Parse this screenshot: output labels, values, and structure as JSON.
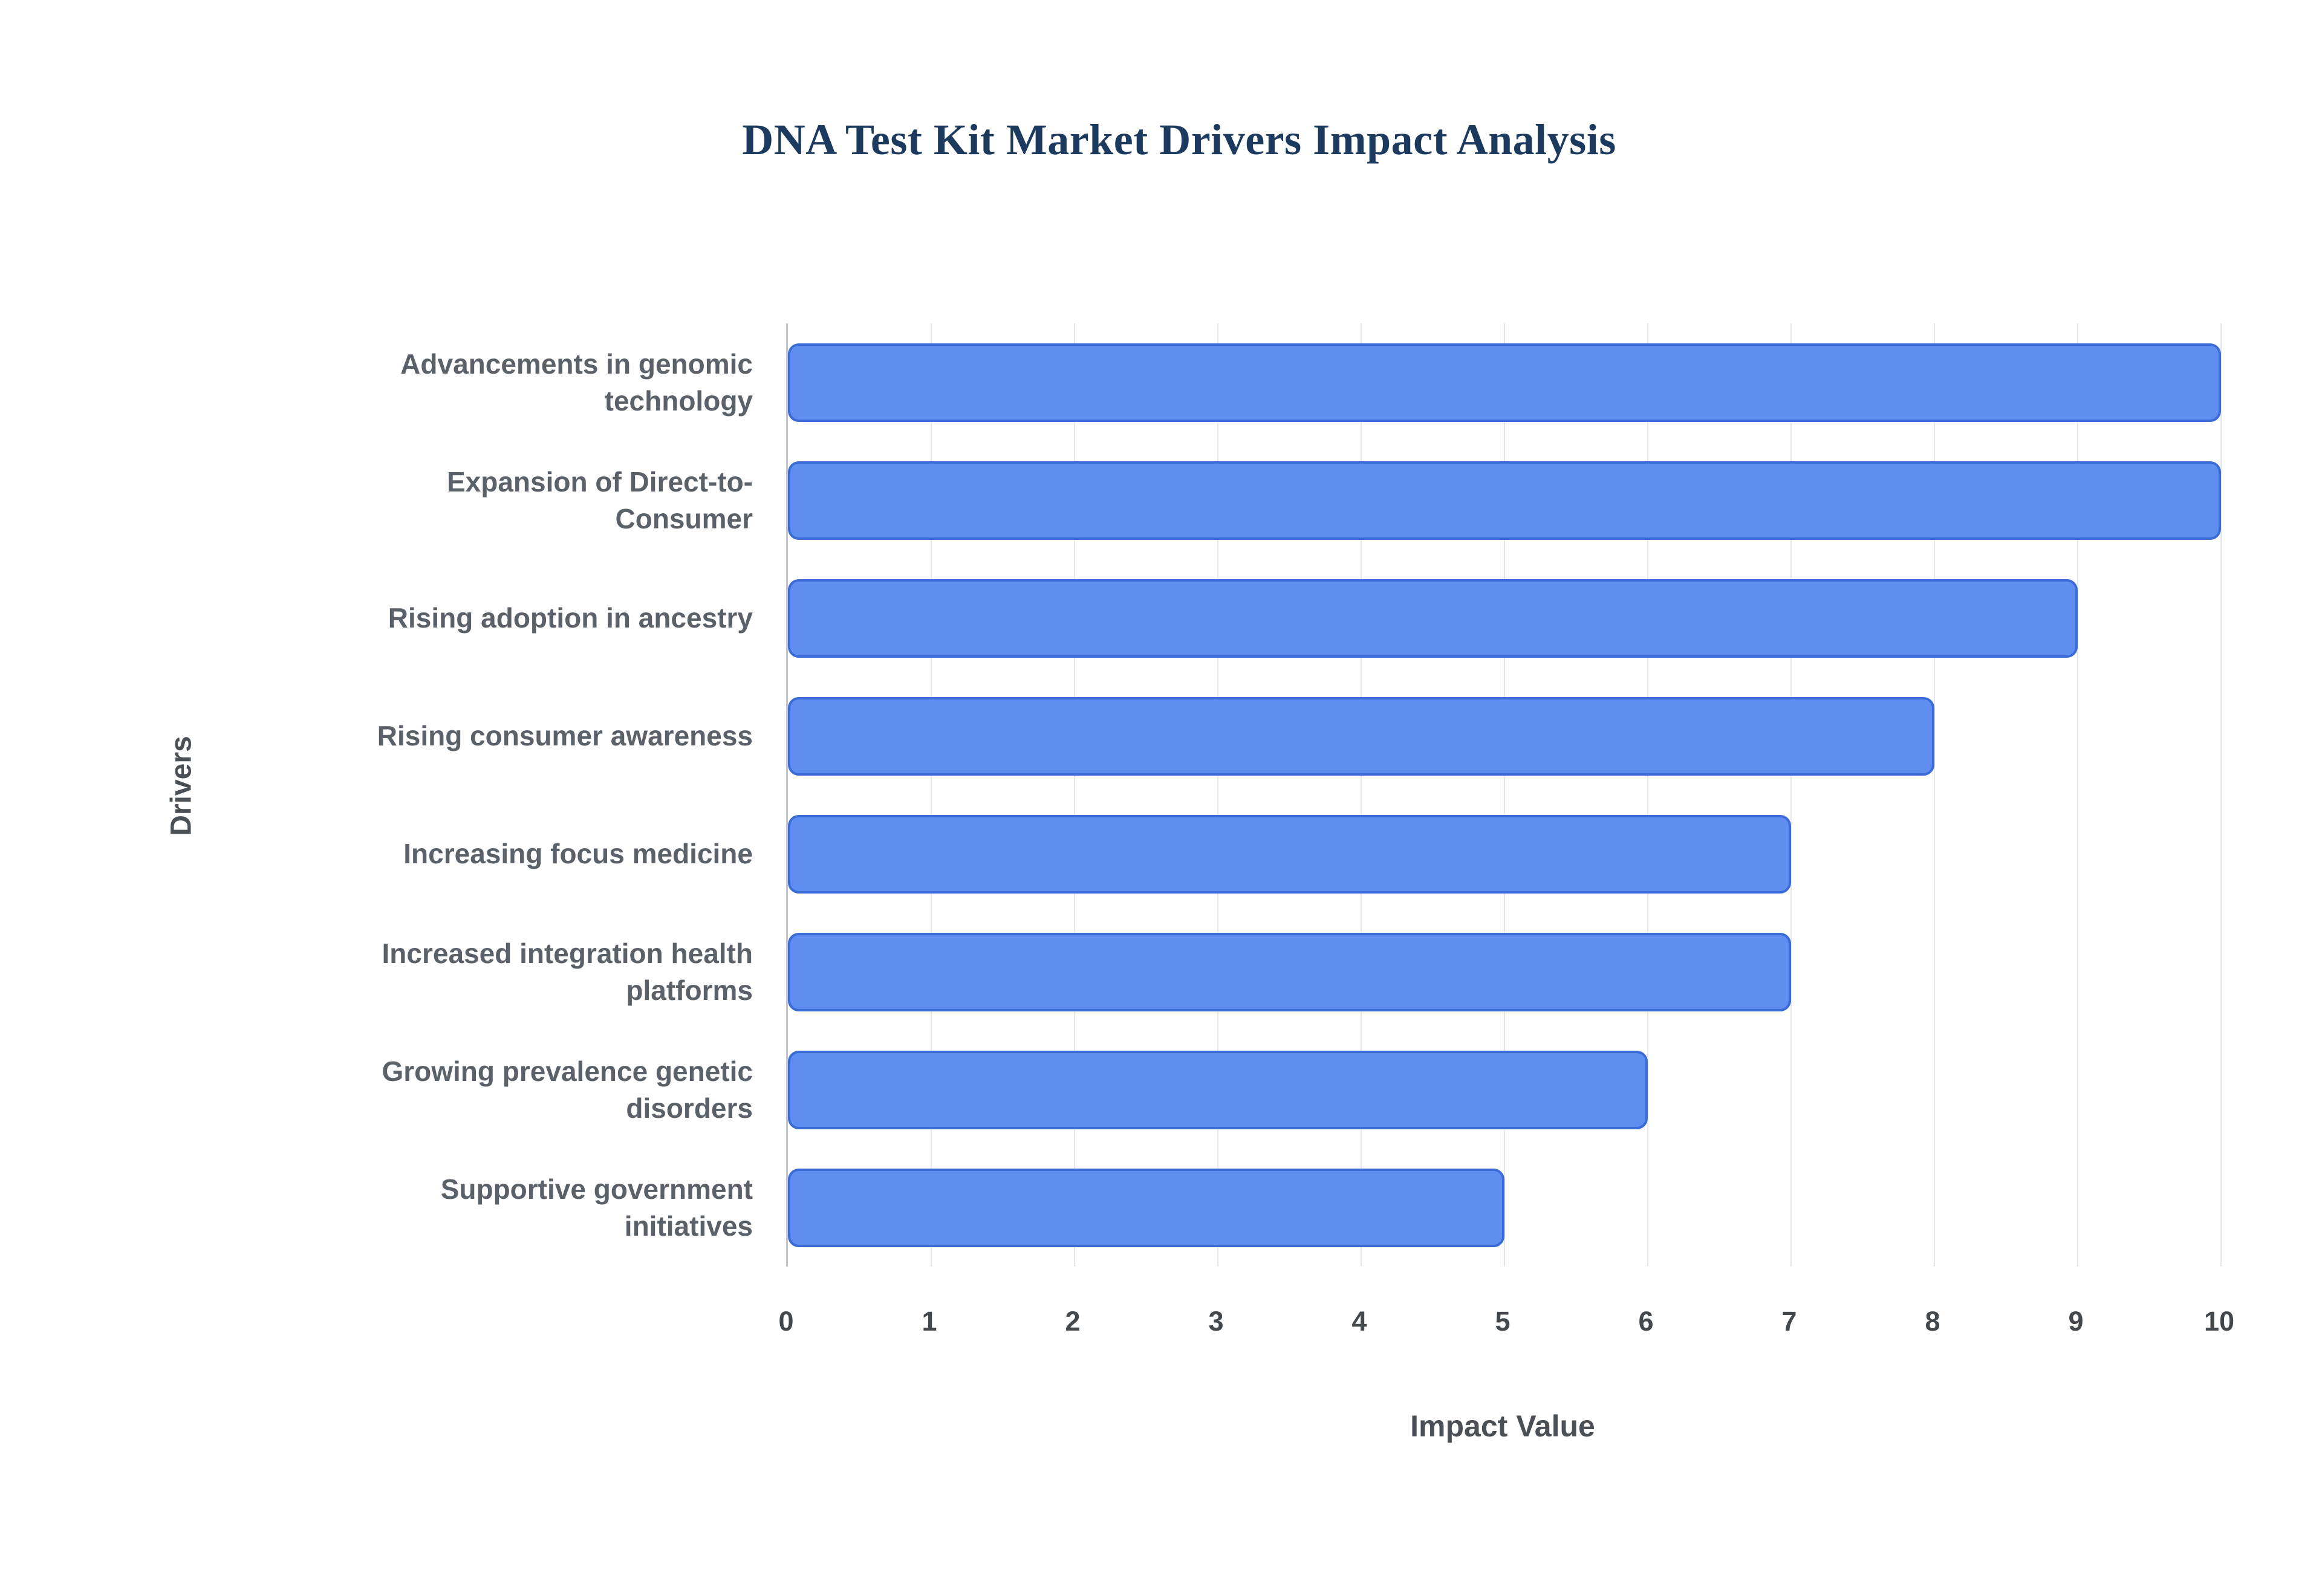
{
  "title": "DNA Test Kit Market Drivers Impact Analysis",
  "chart_data": {
    "type": "bar",
    "orientation": "horizontal",
    "title": "DNA Test Kit Market Drivers Impact Analysis",
    "categories": [
      "Advancements in genomic technology",
      "Expansion of Direct-to-Consumer",
      "Rising adoption in ancestry",
      "Rising consumer awareness",
      "Increasing focus medicine",
      "Increased integration health platforms",
      "Growing prevalence genetic disorders",
      "Supportive government initiatives"
    ],
    "values": [
      10,
      10,
      9,
      8,
      7,
      7,
      6,
      5
    ],
    "xlabel": "Impact Value",
    "ylabel": "Drivers",
    "xlim": [
      0,
      10
    ],
    "xticks": [
      0,
      1,
      2,
      3,
      4,
      5,
      6,
      7,
      8,
      9,
      10
    ],
    "grid": true,
    "legend": "none",
    "colors": {
      "bar_fill": "#5f8ef0",
      "bar_border": "#3a6bd6",
      "title_text": "#1b3a5e",
      "axis_text": "#4a5056",
      "tick_text": "#43484d",
      "gridline": "#e3e6ea"
    }
  }
}
